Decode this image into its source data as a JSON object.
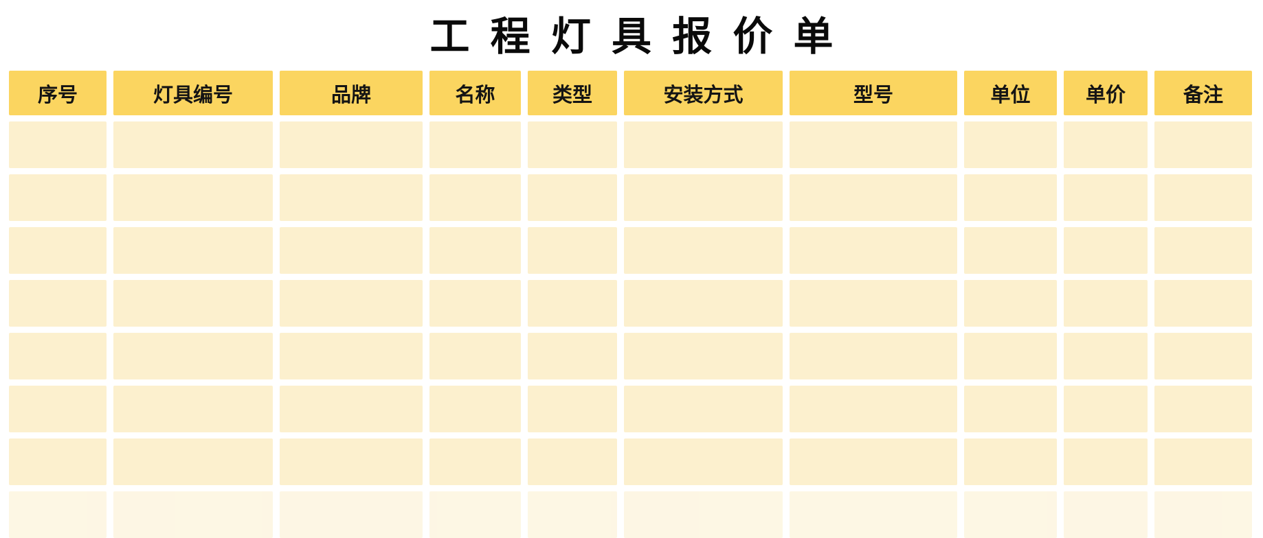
{
  "page": {
    "title": "工程灯具报价单",
    "background": "#FFFFFF"
  },
  "table": {
    "columns": [
      {
        "key": "serial-number",
        "label": "序号"
      },
      {
        "key": "fixture-number",
        "label": "灯具编号"
      },
      {
        "key": "brand",
        "label": "品牌"
      },
      {
        "key": "name",
        "label": "名称"
      },
      {
        "key": "type",
        "label": "类型"
      },
      {
        "key": "installation-method",
        "label": "安装方式"
      },
      {
        "key": "model",
        "label": "型号"
      },
      {
        "key": "unit",
        "label": "单位"
      },
      {
        "key": "unit-price",
        "label": "单价"
      },
      {
        "key": "remarks",
        "label": "备注"
      }
    ],
    "rows": [
      [
        "",
        "",
        "",
        "",
        "",
        "",
        "",
        "",
        "",
        ""
      ],
      [
        "",
        "",
        "",
        "",
        "",
        "",
        "",
        "",
        "",
        ""
      ],
      [
        "",
        "",
        "",
        "",
        "",
        "",
        "",
        "",
        "",
        ""
      ],
      [
        "",
        "",
        "",
        "",
        "",
        "",
        "",
        "",
        "",
        ""
      ],
      [
        "",
        "",
        "",
        "",
        "",
        "",
        "",
        "",
        "",
        ""
      ],
      [
        "",
        "",
        "",
        "",
        "",
        "",
        "",
        "",
        "",
        ""
      ],
      [
        "",
        "",
        "",
        "",
        "",
        "",
        "",
        "",
        "",
        ""
      ]
    ],
    "partial_row_visible": true,
    "colors": {
      "header_bg": "#FBD560",
      "row_bg": "#FCF0CE",
      "header_text": "#141414",
      "page_bg": "#FFFFFF"
    }
  }
}
